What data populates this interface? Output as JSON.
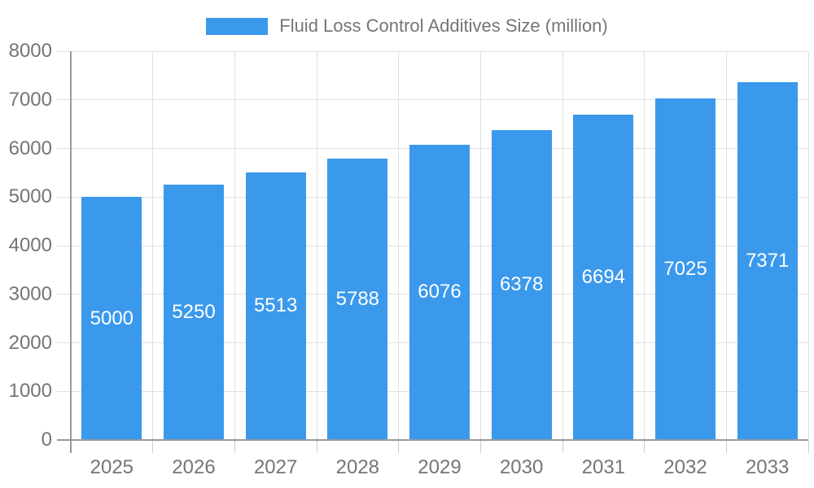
{
  "legend": {
    "label": "Fluid Loss Control Additives Size (million)"
  },
  "chart_data": {
    "type": "bar",
    "title": "Fluid Loss Control Additives Size (million)",
    "categories": [
      "2025",
      "2026",
      "2027",
      "2028",
      "2029",
      "2030",
      "2031",
      "2032",
      "2033"
    ],
    "values": [
      5000,
      5250,
      5513,
      5788,
      6076,
      6378,
      6694,
      7025,
      7371
    ],
    "series": [
      {
        "name": "Fluid Loss Control Additives Size (million)",
        "values": [
          5000,
          5250,
          5513,
          5788,
          6076,
          6378,
          6694,
          7025,
          7371
        ]
      }
    ],
    "xlabel": "",
    "ylabel": "",
    "ylim": [
      0,
      8000
    ],
    "yticks": [
      0,
      1000,
      2000,
      3000,
      4000,
      5000,
      6000,
      7000,
      8000
    ],
    "grid": true,
    "legend_position": "top",
    "value_labels": "inside-center",
    "bar_color": "#3B99EC",
    "value_label_color": "#FFFFFF",
    "axis_text_color": "#757575",
    "axis_line_color": "#999999",
    "gridline_color": "#E0E0E0",
    "tick_color": "#CCCCCC"
  }
}
